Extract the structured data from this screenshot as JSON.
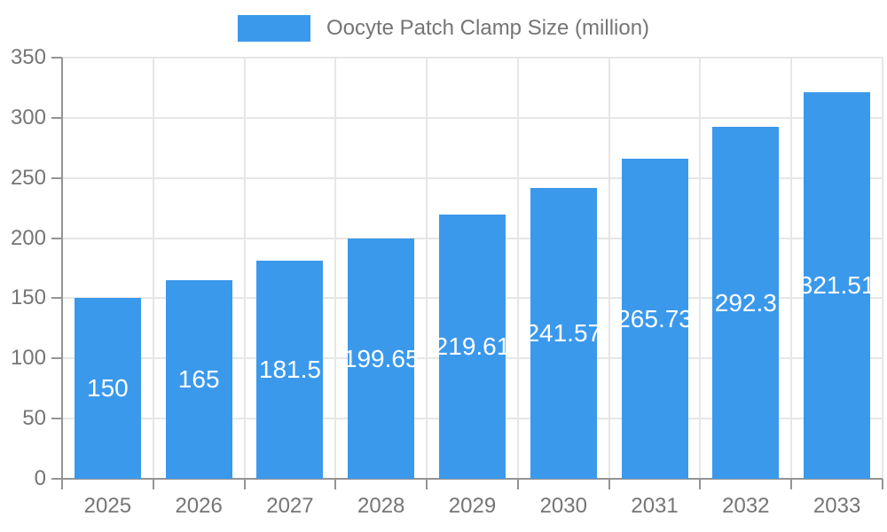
{
  "chart_data": {
    "type": "bar",
    "series_name": "Oocyte Patch Clamp Size (million)",
    "categories": [
      "2025",
      "2026",
      "2027",
      "2028",
      "2029",
      "2030",
      "2031",
      "2032",
      "2033"
    ],
    "values": [
      150,
      165,
      181.5,
      199.65,
      219.61,
      241.57,
      265.73,
      292.3,
      321.51
    ],
    "value_labels": [
      "150",
      "165",
      "181.5",
      "199.65",
      "219.61",
      "241.57",
      "265.73",
      "292.3",
      "321.51"
    ],
    "xlabel": "",
    "ylabel": "",
    "ylim": [
      0,
      350
    ],
    "yticks": [
      0,
      50,
      100,
      150,
      200,
      250,
      300,
      350
    ],
    "legend_position": "top-center",
    "grid": {
      "horizontal": true,
      "vertical": true
    },
    "colors": {
      "bar": "#3B99EC",
      "axis_line": "#949494",
      "grid_line": "#E6E6E6",
      "tick_label": "#757575",
      "legend_label": "#757575",
      "bar_label": "#FFFFFF",
      "background": "#FFFFFF"
    }
  }
}
